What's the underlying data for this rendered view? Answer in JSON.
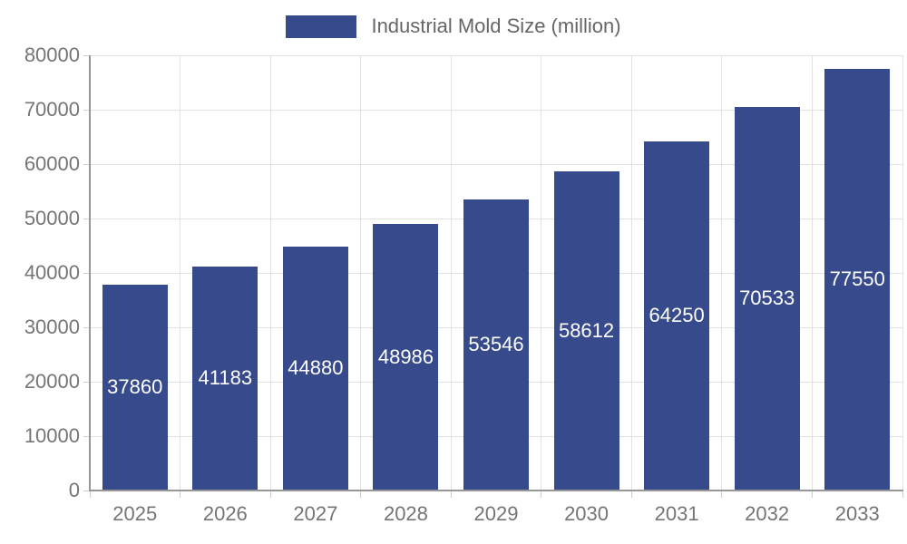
{
  "legend": {
    "label": "Industrial Mold Size (million)"
  },
  "chart_data": {
    "type": "bar",
    "title": "",
    "series_name": "Industrial Mold Size (million)",
    "categories": [
      "2025",
      "2026",
      "2027",
      "2028",
      "2029",
      "2030",
      "2031",
      "2032",
      "2033"
    ],
    "values": [
      37860,
      41183,
      44880,
      48986,
      53546,
      58612,
      64250,
      70533,
      77550
    ],
    "xlabel": "",
    "ylabel": "",
    "ylim": [
      0,
      80000
    ],
    "ytick_interval": 10000,
    "ytick_labels": [
      "0",
      "10000",
      "20000",
      "30000",
      "40000",
      "50000",
      "60000",
      "70000",
      "80000"
    ],
    "grid": true,
    "legend_position": "top-center",
    "bar_label_position": "inside-center"
  },
  "colors": {
    "bar": "#374b8c",
    "value_label": "#ffffff",
    "axis_text": "#757575",
    "legend_text": "#666666",
    "grid_line": "#e2e2e6",
    "axis_line": "#969696",
    "tick_line": "#cccccc",
    "background": "#ffffff"
  }
}
